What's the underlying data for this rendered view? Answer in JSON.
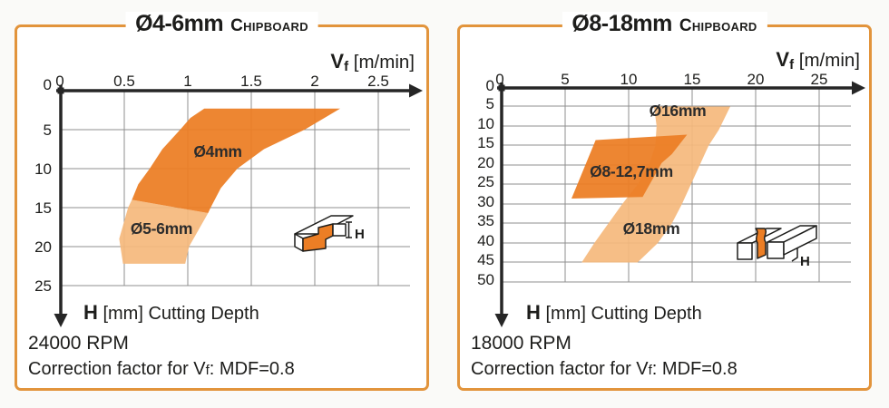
{
  "window": {
    "background": "#fafaf8"
  },
  "colors": {
    "frame": "#E2943C",
    "band_dark": "#EC7E25",
    "band_light": "#F5B97C",
    "axis": "#262626",
    "grid": "#8f8f8f",
    "text": "#1d1d1b"
  },
  "panels": [
    {
      "title_diameter": "Ø4-6mm",
      "title_material": "Chipboard",
      "vf": {
        "v": "V",
        "sub": "f",
        "unit": " [m/min]"
      },
      "x_ticks": [
        "0",
        "0.5",
        "1",
        "1.5",
        "2",
        "2.5"
      ],
      "y_ticks": [
        "0",
        "5",
        "10",
        "15",
        "20",
        "25"
      ],
      "depth": {
        "h": "H",
        "rest": " [mm] Cutting Depth"
      },
      "rpm": "24000 RPM",
      "correction": {
        "pre": "Correction factor for V",
        "sub": "f",
        "post": ": MDF=0.8"
      }
    },
    {
      "title_diameter": "Ø8-18mm",
      "title_material": "Chipboard",
      "vf": {
        "v": "V",
        "sub": "f",
        "unit": " [m/min]"
      },
      "x_ticks": [
        "0",
        "5",
        "10",
        "15",
        "20",
        "25"
      ],
      "y_ticks": [
        "0",
        "5",
        "10",
        "15",
        "20",
        "25",
        "30",
        "35",
        "40",
        "45",
        "50"
      ],
      "depth": {
        "h": "H",
        "rest": " [mm] Cutting Depth"
      },
      "rpm": "18000 RPM",
      "correction": {
        "pre": "Correction factor for V",
        "sub": "f",
        "post": ": MDF=0.8"
      }
    }
  ],
  "chart_data": [
    {
      "type": "area",
      "title": "Ø4-6mm Chipboard",
      "xlabel": "Vf [m/min]",
      "ylabel": "H [mm] Cutting Depth",
      "xlim": [
        0,
        2.5
      ],
      "ylim": [
        0,
        25
      ],
      "y_axis": "inverted, cutting depth increases downward",
      "grid": true,
      "spindle_rpm": 24000,
      "correction_factor_vf": "MDF=0.8",
      "regions": [
        {
          "labels": [
            "Ø5-6mm"
          ],
          "shade": "light",
          "points": [
            [
              0.56,
              14
            ],
            [
              1.16,
              15.7
            ],
            [
              1.01,
              20
            ],
            [
              0.98,
              22.2
            ],
            [
              0.49,
              22.2
            ],
            [
              0.46,
              19
            ],
            [
              0.53,
              15
            ]
          ]
        },
        {
          "labels": [
            "Ø4mm"
          ],
          "shade": "dark",
          "points": [
            [
              1.13,
              2.3
            ],
            [
              2.2,
              2.3
            ],
            [
              1.92,
              5
            ],
            [
              1.6,
              7.5
            ],
            [
              1.39,
              10
            ],
            [
              1.26,
              12.5
            ],
            [
              1.18,
              15
            ],
            [
              1.16,
              15.7
            ],
            [
              0.56,
              14
            ],
            [
              0.61,
              12
            ],
            [
              0.7,
              10
            ],
            [
              0.8,
              7.5
            ],
            [
              0.94,
              5
            ],
            [
              1.02,
              3.5
            ]
          ]
        }
      ]
    },
    {
      "type": "area",
      "title": "Ø8-18mm Chipboard",
      "xlabel": "Vf [m/min]",
      "ylabel": "H [mm] Cutting Depth",
      "xlim": [
        0,
        25
      ],
      "ylim": [
        0,
        50
      ],
      "y_axis": "inverted, cutting depth increases downward",
      "grid": true,
      "spindle_rpm": 18000,
      "correction_factor_vf": "MDF=0.8",
      "regions": [
        {
          "labels": [
            "Ø16mm",
            "Ø18mm"
          ],
          "shade": "light",
          "points": [
            [
              12,
              5
            ],
            [
              18,
              5
            ],
            [
              17.1,
              11
            ],
            [
              16.3,
              15
            ],
            [
              15.6,
              20
            ],
            [
              14.9,
              25
            ],
            [
              14.2,
              30
            ],
            [
              13.4,
              35
            ],
            [
              12.3,
              40
            ],
            [
              10.7,
              45
            ],
            [
              6.3,
              45
            ],
            [
              7.3,
              40
            ],
            [
              8.4,
              35
            ],
            [
              9.5,
              30
            ],
            [
              10.7,
              25
            ],
            [
              11.6,
              20
            ],
            [
              12.1,
              15
            ],
            [
              12.2,
              10
            ]
          ]
        },
        {
          "labels": [
            "Ø8-12,7mm"
          ],
          "shade": "dark",
          "points": [
            [
              7.4,
              13.6
            ],
            [
              14.6,
              12.2
            ],
            [
              13.4,
              17.2
            ],
            [
              12.6,
              19.5
            ],
            [
              11.1,
              28.2
            ],
            [
              5.5,
              28.6
            ]
          ]
        }
      ]
    }
  ]
}
